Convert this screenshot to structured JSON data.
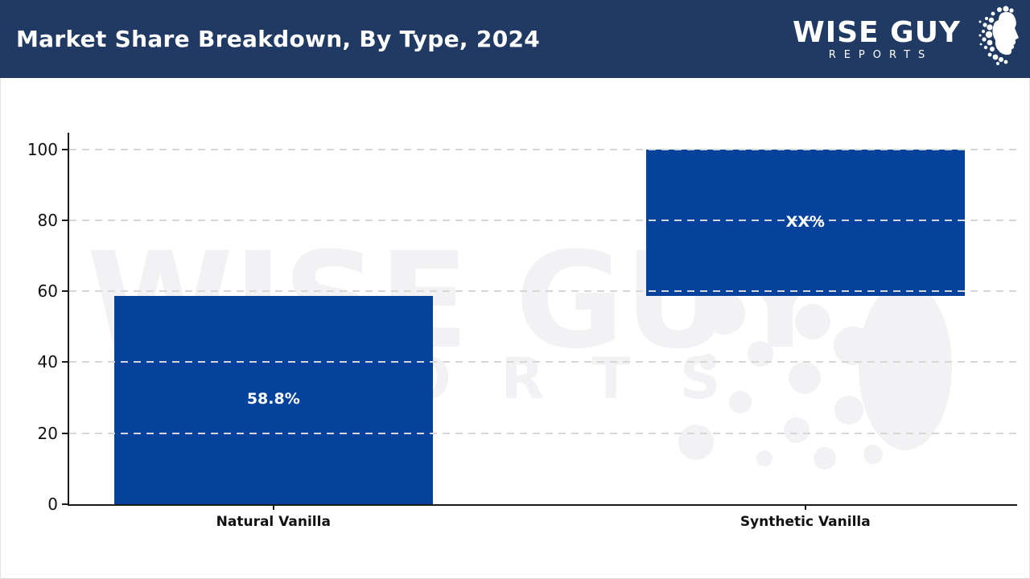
{
  "header": {
    "title": "Market Share Breakdown, By Type, 2024",
    "background_color": "#213a63",
    "logo": {
      "line1": "WISE GUY",
      "line2": "REPORTS",
      "head_icon": "dotted-face-profile"
    }
  },
  "watermark": {
    "line1": "WISE GUY",
    "line2": "REPORTS"
  },
  "chart_data": {
    "type": "bar",
    "subtype": "floating-waterfall",
    "title": "Market Share Breakdown, By Type, 2024",
    "categories": [
      "Natural Vanilla",
      "Synthetic Vanilla"
    ],
    "bars": [
      {
        "category": "Natural Vanilla",
        "start": 0,
        "end": 58.8,
        "label": "58.8%"
      },
      {
        "category": "Synthetic Vanilla",
        "start": 58.8,
        "end": 100,
        "label": "XX%"
      }
    ],
    "yticks": [
      0,
      20,
      40,
      60,
      80,
      100
    ],
    "ylim": [
      0,
      104.7
    ],
    "xlabel": "",
    "ylabel": "",
    "legend": "none",
    "grid": "horizontal dashed, drawn above bars",
    "bar_color": "#04429b",
    "bar_label_color": "#ffffff",
    "axis_color": "#1a1a1a",
    "grid_color": "#d7d7d7"
  }
}
